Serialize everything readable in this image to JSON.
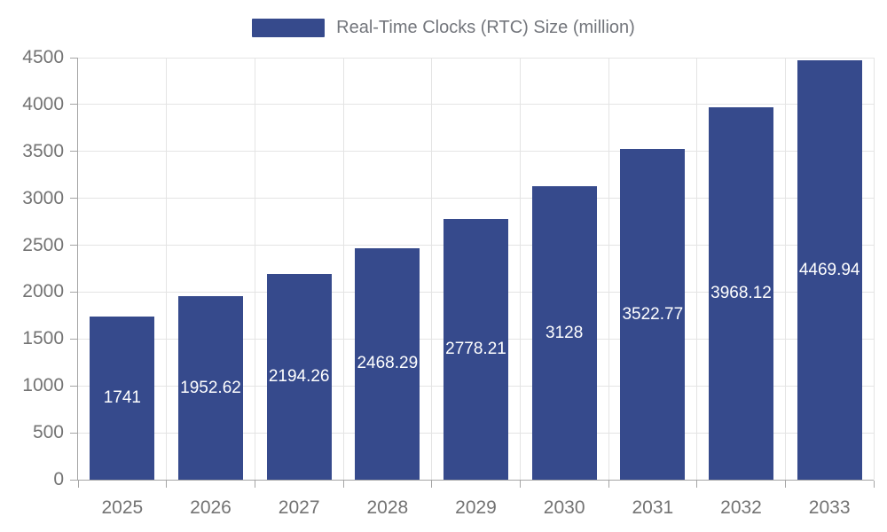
{
  "legend": {
    "label": "Real-Time Clocks (RTC) Size (million)"
  },
  "colors": {
    "bar": "#364A8C",
    "grid": "#E4E4E4",
    "axis": "#A5A5A5",
    "tick_text": "#737373",
    "legend_text": "#73767C",
    "bar_label_text": "#FFFFFF",
    "background": "#FFFFFF"
  },
  "chart_data": {
    "type": "bar",
    "title": "Real-Time Clocks (RTC) Size (million)",
    "categories": [
      "2025",
      "2026",
      "2027",
      "2028",
      "2029",
      "2030",
      "2031",
      "2032",
      "2033"
    ],
    "values": [
      1741,
      1952.62,
      2194.26,
      2468.29,
      2778.21,
      3128,
      3522.77,
      3968.12,
      4469.94
    ],
    "bar_labels": [
      "1741",
      "1952.62",
      "2194.26",
      "2468.29",
      "2778.21",
      "3128",
      "3522.77",
      "3968.12",
      "4469.94"
    ],
    "series": [
      {
        "name": "Real-Time Clocks (RTC) Size (million)",
        "values": [
          1741,
          1952.62,
          2194.26,
          2468.29,
          2778.21,
          3128,
          3522.77,
          3968.12,
          4469.94
        ]
      }
    ],
    "xlabel": "",
    "ylabel": "",
    "ylim": [
      0,
      4500
    ],
    "ytick_interval": 500,
    "yticks": [
      0,
      500,
      1000,
      1500,
      2000,
      2500,
      3000,
      3500,
      4000,
      4500
    ],
    "grid": true,
    "legend_position": "top-center",
    "bar_label_position": "inside-center"
  }
}
